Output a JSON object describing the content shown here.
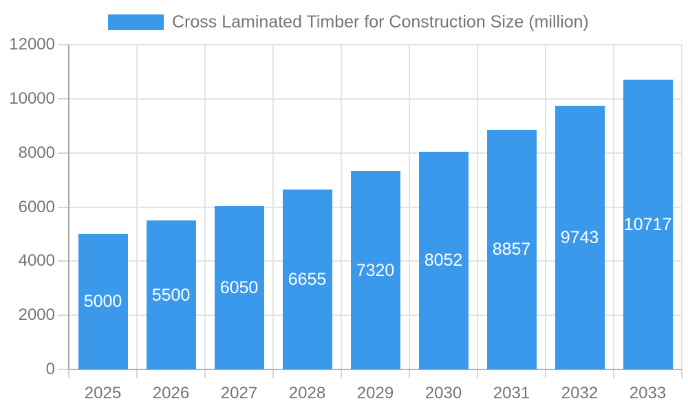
{
  "legend": {
    "label": "Cross Laminated Timber for Construction Size (million)",
    "swatch_color": "#3b99ec"
  },
  "chart_data": {
    "type": "bar",
    "title": "Cross Laminated Timber for Construction Size (million)",
    "categories": [
      "2025",
      "2026",
      "2027",
      "2028",
      "2029",
      "2030",
      "2031",
      "2032",
      "2033"
    ],
    "values": [
      5000,
      5500,
      6050,
      6655,
      7320,
      8052,
      8857,
      9743,
      10717
    ],
    "value_labels": [
      "5000",
      "5500",
      "6050",
      "6655",
      "7320",
      "8052",
      "8857",
      "9743",
      "10717"
    ],
    "xlabel": "",
    "ylabel": "",
    "ylim": [
      0,
      12000
    ],
    "ytick_interval": 2000,
    "ytick_labels": [
      "0",
      "2000",
      "4000",
      "6000",
      "8000",
      "10000",
      "12000"
    ],
    "grid": true,
    "legend_position": "top",
    "bar_color": "#3b99ec",
    "value_label_color": "#ffffff"
  },
  "colors": {
    "bar": "#3b99ec",
    "axis_text": "#757575",
    "gridline": "#e3e3e3",
    "tick": "#d6d6d6",
    "y_axis_line": "#a6a6a6",
    "x_axis_line": "#b3b3b3",
    "value_text": "#ffffff",
    "background": "#ffffff"
  }
}
